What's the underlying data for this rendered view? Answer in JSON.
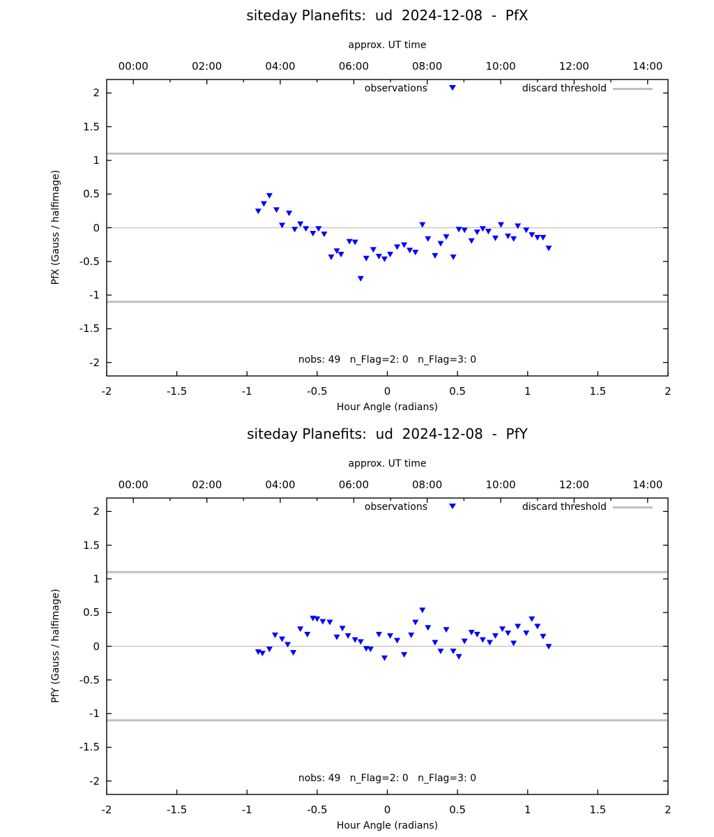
{
  "colors": {
    "marker_blue": "#0000ff",
    "threshold_gray": "#c0c0c0",
    "zero_line_gray": "#c0c0c0",
    "axis_black": "#000000",
    "background": "#ffffff"
  },
  "chart_data": [
    {
      "type": "scatter",
      "title": "siteday Planefits:  ud  2024-12-08  -  PfX",
      "x2label": "approx. UT time",
      "xlabel": "Hour Angle (radians)",
      "ylabel": "PfX (Gauss / halfimage)",
      "xlim": [
        -2,
        2
      ],
      "ylim": [
        -2.2,
        2.2
      ],
      "xtick_values": [
        -2,
        -1.5,
        -1,
        -0.5,
        0,
        0.5,
        1,
        1.5,
        2
      ],
      "xtick_labels": [
        "-2",
        "-1.5",
        "-1",
        "-0.5",
        "0",
        "0.5",
        "1",
        "1.5",
        "2"
      ],
      "ytick_values": [
        2,
        1.5,
        1,
        0.5,
        0,
        -0.5,
        -1,
        -1.5,
        -2
      ],
      "ytick_labels": [
        "2",
        "1.5",
        "1",
        "0.5",
        "0",
        "-0.5",
        "-1",
        "-1.5",
        "-2"
      ],
      "x2tick_values": [
        -1.81,
        -1.286,
        -0.763,
        -0.239,
        0.284,
        0.808,
        1.331,
        1.855
      ],
      "x2tick_labels": [
        "00:00",
        "02:00",
        "04:00",
        "06:00",
        "08:00",
        "10:00",
        "12:00",
        "14:00"
      ],
      "x2minor_values": [
        -1.548,
        -1.025,
        -0.501,
        0.023,
        0.546,
        1.07,
        1.593
      ],
      "thresholds": [
        1.1,
        -1.1
      ],
      "zero_line": 0,
      "legend": [
        {
          "label": "observations",
          "sample": "triangle-down-marker"
        },
        {
          "label": "discard threshold",
          "sample": "gray-line"
        }
      ],
      "annotation": "nobs: 49   n_Flag=2: 0   n_Flag=3: 0",
      "series": [
        {
          "name": "observations",
          "marker": "triangle-down",
          "color": "#0000ff",
          "points": [
            [
              -0.92,
              0.25
            ],
            [
              -0.88,
              0.36
            ],
            [
              -0.84,
              0.48
            ],
            [
              -0.79,
              0.27
            ],
            [
              -0.75,
              0.04
            ],
            [
              -0.7,
              0.22
            ],
            [
              -0.66,
              -0.02
            ],
            [
              -0.62,
              0.06
            ],
            [
              -0.58,
              -0.01
            ],
            [
              -0.53,
              -0.08
            ],
            [
              -0.49,
              -0.01
            ],
            [
              -0.45,
              -0.09
            ],
            [
              -0.4,
              -0.43
            ],
            [
              -0.36,
              -0.34
            ],
            [
              -0.33,
              -0.39
            ],
            [
              -0.27,
              -0.2
            ],
            [
              -0.23,
              -0.21
            ],
            [
              -0.19,
              -0.75
            ],
            [
              -0.15,
              -0.45
            ],
            [
              -0.1,
              -0.32
            ],
            [
              -0.06,
              -0.42
            ],
            [
              -0.02,
              -0.46
            ],
            [
              0.02,
              -0.39
            ],
            [
              0.07,
              -0.28
            ],
            [
              0.12,
              -0.25
            ],
            [
              0.16,
              -0.33
            ],
            [
              0.2,
              -0.36
            ],
            [
              0.25,
              0.05
            ],
            [
              0.29,
              -0.16
            ],
            [
              0.34,
              -0.41
            ],
            [
              0.38,
              -0.23
            ],
            [
              0.42,
              -0.13
            ],
            [
              0.47,
              -0.43
            ],
            [
              0.51,
              -0.02
            ],
            [
              0.55,
              -0.03
            ],
            [
              0.6,
              -0.19
            ],
            [
              0.64,
              -0.06
            ],
            [
              0.68,
              -0.01
            ],
            [
              0.72,
              -0.05
            ],
            [
              0.77,
              -0.15
            ],
            [
              0.81,
              0.05
            ],
            [
              0.86,
              -0.12
            ],
            [
              0.9,
              -0.16
            ],
            [
              0.93,
              0.03
            ],
            [
              0.99,
              -0.03
            ],
            [
              1.03,
              -0.1
            ],
            [
              1.07,
              -0.14
            ],
            [
              1.11,
              -0.14
            ],
            [
              1.15,
              -0.3
            ]
          ]
        }
      ]
    },
    {
      "type": "scatter",
      "title": "siteday Planefits:  ud  2024-12-08  -  PfY",
      "x2label": "approx. UT time",
      "xlabel": "Hour Angle (radians)",
      "ylabel": "PfY (Gauss / halfimage)",
      "xlim": [
        -2,
        2
      ],
      "ylim": [
        -2.2,
        2.2
      ],
      "xtick_values": [
        -2,
        -1.5,
        -1,
        -0.5,
        0,
        0.5,
        1,
        1.5,
        2
      ],
      "xtick_labels": [
        "-2",
        "-1.5",
        "-1",
        "-0.5",
        "0",
        "0.5",
        "1",
        "1.5",
        "2"
      ],
      "ytick_values": [
        2,
        1.5,
        1,
        0.5,
        0,
        -0.5,
        -1,
        -1.5,
        -2
      ],
      "ytick_labels": [
        "2",
        "1.5",
        "1",
        "0.5",
        "0",
        "-0.5",
        "-1",
        "-1.5",
        "-2"
      ],
      "x2tick_values": [
        -1.81,
        -1.286,
        -0.763,
        -0.239,
        0.284,
        0.808,
        1.331,
        1.855
      ],
      "x2tick_labels": [
        "00:00",
        "02:00",
        "04:00",
        "06:00",
        "08:00",
        "10:00",
        "12:00",
        "14:00"
      ],
      "x2minor_values": [
        -1.548,
        -1.025,
        -0.501,
        0.023,
        0.546,
        1.07,
        1.593
      ],
      "thresholds": [
        1.1,
        -1.1
      ],
      "zero_line": 0,
      "legend": [
        {
          "label": "observations",
          "sample": "triangle-down-marker"
        },
        {
          "label": "discard threshold",
          "sample": "gray-line"
        }
      ],
      "annotation": "nobs: 49   n_Flag=2: 0   n_Flag=3: 0",
      "series": [
        {
          "name": "observations",
          "marker": "triangle-down",
          "color": "#0000ff",
          "points": [
            [
              -0.92,
              -0.08
            ],
            [
              -0.89,
              -0.1
            ],
            [
              -0.84,
              -0.04
            ],
            [
              -0.8,
              0.17
            ],
            [
              -0.75,
              0.11
            ],
            [
              -0.71,
              0.03
            ],
            [
              -0.67,
              -0.09
            ],
            [
              -0.62,
              0.26
            ],
            [
              -0.57,
              0.18
            ],
            [
              -0.53,
              0.42
            ],
            [
              -0.5,
              0.41
            ],
            [
              -0.46,
              0.37
            ],
            [
              -0.41,
              0.36
            ],
            [
              -0.36,
              0.14
            ],
            [
              -0.32,
              0.27
            ],
            [
              -0.28,
              0.16
            ],
            [
              -0.23,
              0.1
            ],
            [
              -0.19,
              0.07
            ],
            [
              -0.15,
              -0.03
            ],
            [
              -0.12,
              -0.04
            ],
            [
              -0.06,
              0.18
            ],
            [
              -0.02,
              -0.17
            ],
            [
              0.02,
              0.16
            ],
            [
              0.07,
              0.09
            ],
            [
              0.12,
              -0.12
            ],
            [
              0.17,
              0.17
            ],
            [
              0.2,
              0.36
            ],
            [
              0.25,
              0.54
            ],
            [
              0.29,
              0.28
            ],
            [
              0.34,
              0.06
            ],
            [
              0.38,
              -0.07
            ],
            [
              0.42,
              0.25
            ],
            [
              0.47,
              -0.07
            ],
            [
              0.51,
              -0.15
            ],
            [
              0.55,
              0.08
            ],
            [
              0.6,
              0.21
            ],
            [
              0.64,
              0.18
            ],
            [
              0.68,
              0.1
            ],
            [
              0.73,
              0.06
            ],
            [
              0.77,
              0.16
            ],
            [
              0.82,
              0.26
            ],
            [
              0.86,
              0.2
            ],
            [
              0.9,
              0.05
            ],
            [
              0.93,
              0.3
            ],
            [
              0.99,
              0.2
            ],
            [
              1.03,
              0.41
            ],
            [
              1.07,
              0.3
            ],
            [
              1.11,
              0.15
            ],
            [
              1.15,
              0.0
            ]
          ]
        }
      ]
    }
  ]
}
